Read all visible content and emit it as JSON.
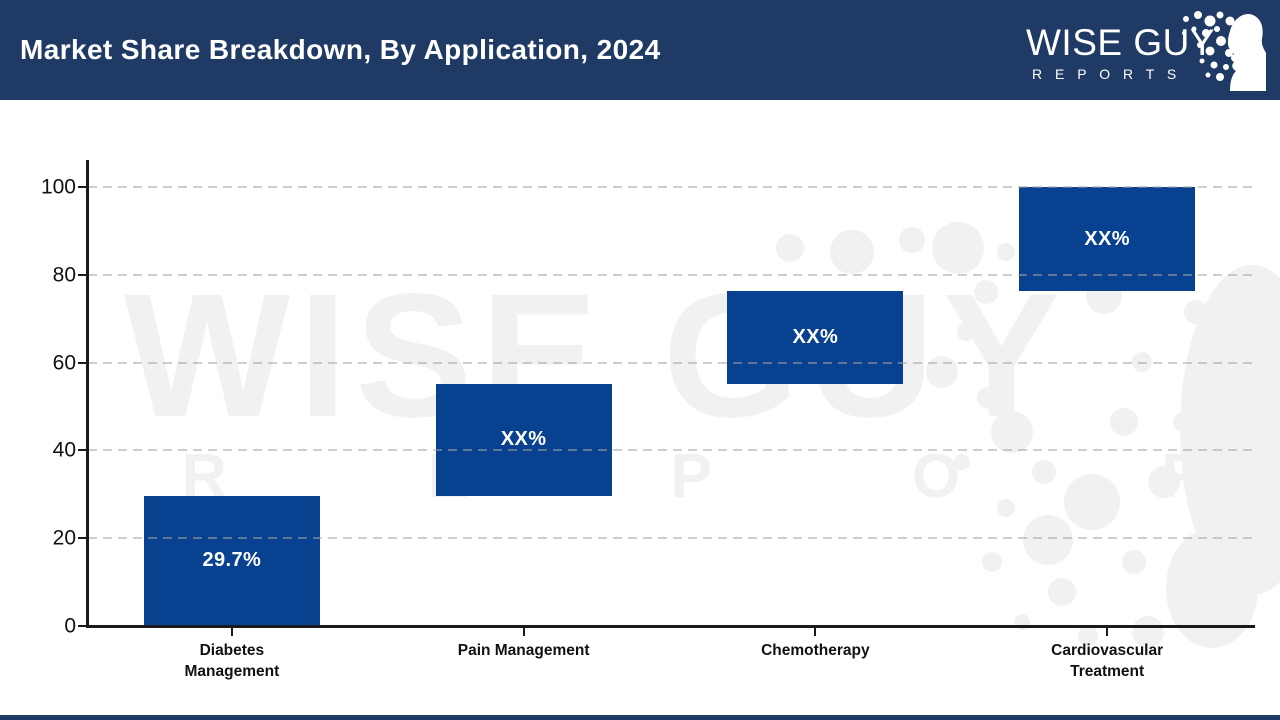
{
  "header": {
    "title": "Market Share Breakdown, By Application, 2024",
    "logo": {
      "wise_guy": "WISE GUY",
      "reports": "R E P O R T S"
    }
  },
  "watermark": {
    "wise_guy": "WISE GUY",
    "reports": "R E P O R T S"
  },
  "colors": {
    "header_navy": "#1f3a64",
    "bar_blue": "#07418f",
    "watermark_gray": "#f1f1f4",
    "grid_gray": "#a5a5a5",
    "axis_black": "#1a1a1a"
  },
  "chart_data": {
    "type": "bar",
    "subtype": "waterfall-stacked-percent",
    "title": "Market Share Breakdown, By Application, 2024",
    "xlabel": "",
    "ylabel": "",
    "ylim": [
      0,
      105
    ],
    "yticks": [
      0,
      20,
      40,
      60,
      80,
      100
    ],
    "grid": "horizontal dashed, drawn over bars",
    "legend": "none",
    "categories": [
      "Diabetes Management",
      "Pain Management",
      "Chemotherapy",
      "Cardiovascular Treatment"
    ],
    "segments": [
      {
        "category": "Diabetes Management",
        "start": 0,
        "end": 29.7,
        "value": 29.7,
        "label": "29.7%"
      },
      {
        "category": "Pain Management",
        "start": 29.7,
        "end": 55.2,
        "value": 25.5,
        "label": "XX%"
      },
      {
        "category": "Chemotherapy",
        "start": 55.2,
        "end": 76.3,
        "value": 21.1,
        "label": "XX%"
      },
      {
        "category": "Cardiovascular Treatment",
        "start": 76.3,
        "end": 100,
        "value": 23.7,
        "label": "XX%"
      }
    ]
  }
}
